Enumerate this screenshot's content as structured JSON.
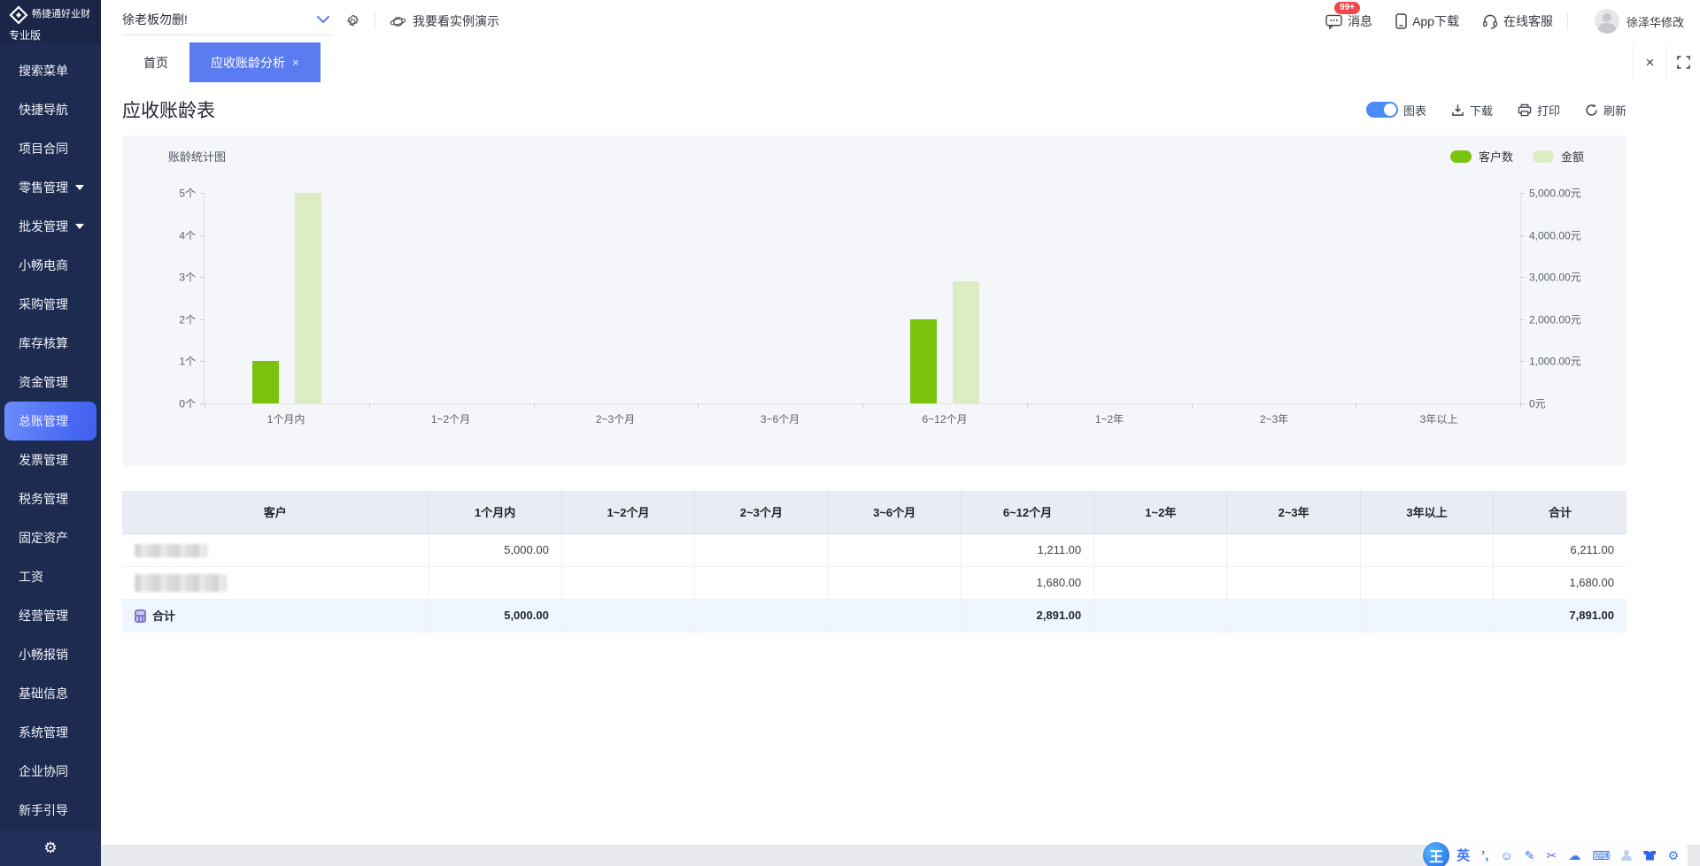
{
  "app": {
    "brand_line1": "畅捷通好业财",
    "brand_line2": "专业版",
    "account_name": "徐老板勿删!",
    "demo_link": "我要看实例演示",
    "message_label": "消息",
    "message_badge": "99+",
    "app_download_label": "App下载",
    "support_label": "在线客服",
    "user_name": "徐泽华修改"
  },
  "sidebar": {
    "footer_gear_glyph": "⚙",
    "items": [
      {
        "label": "搜索菜单"
      },
      {
        "label": "快捷导航"
      },
      {
        "label": "项目合同"
      },
      {
        "label": "零售管理",
        "arrow": true
      },
      {
        "label": "批发管理",
        "arrow": true
      },
      {
        "label": "小畅电商"
      },
      {
        "label": "采购管理"
      },
      {
        "label": "库存核算"
      },
      {
        "label": "资金管理"
      },
      {
        "label": "总账管理",
        "active": true
      },
      {
        "label": "发票管理"
      },
      {
        "label": "税务管理"
      },
      {
        "label": "固定资产"
      },
      {
        "label": "工资"
      },
      {
        "label": "经营管理"
      },
      {
        "label": "小畅报销"
      },
      {
        "label": "基础信息"
      },
      {
        "label": "系统管理"
      },
      {
        "label": "企业协同"
      },
      {
        "label": "新手引导"
      }
    ]
  },
  "tabs": [
    {
      "label": "首页",
      "active": false,
      "closable": false
    },
    {
      "label": "应收账龄分析",
      "active": true,
      "closable": true,
      "close_glyph": "×"
    }
  ],
  "window_controls": {
    "close_glyph": "×"
  },
  "page": {
    "title": "应收账龄表",
    "toolbar": {
      "chart_toggle_label": "图表",
      "toggle_on": true,
      "download_label": "下载",
      "print_label": "打印",
      "refresh_label": "刷新"
    }
  },
  "chart_data": {
    "type": "bar",
    "title": "账龄统计图",
    "categories": [
      "1个月内",
      "1~2个月",
      "2~3个月",
      "3~6个月",
      "6~12个月",
      "1~2年",
      "2~3年",
      "3年以上"
    ],
    "series": [
      {
        "name": "客户数",
        "color": "#7bc30e",
        "axis": "left",
        "values": [
          1,
          0,
          0,
          0,
          2,
          0,
          0,
          0
        ]
      },
      {
        "name": "金额",
        "color": "#dcedc3",
        "axis": "right",
        "values": [
          5000,
          0,
          0,
          0,
          2891,
          0,
          0,
          0
        ]
      }
    ],
    "left_axis": {
      "max": 5,
      "ticks": [
        "5个",
        "4个",
        "3个",
        "2个",
        "1个",
        "0个"
      ]
    },
    "right_axis": {
      "max": 5000,
      "ticks": [
        "5,000.00元",
        "4,000.00元",
        "3,000.00元",
        "2,000.00元",
        "1,000.00元",
        "0元"
      ]
    },
    "legend_position": "top-right",
    "grid": false
  },
  "table": {
    "headers": [
      "客户",
      "1个月内",
      "1~2个月",
      "2~3个月",
      "3~6个月",
      "6~12个月",
      "1~2年",
      "2~3年",
      "3年以上",
      "合计"
    ],
    "rows": [
      {
        "customer_redacted": true,
        "blur_w": 82,
        "blur_h": 15,
        "values": [
          "5,000.00",
          "",
          "",
          "",
          "1,211.00",
          "",
          "",
          "",
          "6,211.00"
        ]
      },
      {
        "customer_redacted": true,
        "blur_w": 104,
        "blur_h": 20,
        "values": [
          "",
          "",
          "",
          "",
          "1,680.00",
          "",
          "",
          "",
          "1,680.00"
        ]
      }
    ],
    "total_row": {
      "label": "合计",
      "values": [
        "5,000.00",
        "",
        "",
        "",
        "2,891.00",
        "",
        "",
        "",
        "7,891.00"
      ]
    }
  },
  "ime_bar": {
    "logo_glyph": "王",
    "icons": [
      {
        "name": "english-mode-icon",
        "glyph": "英",
        "kind": "txt"
      },
      {
        "name": "punctuation-icon",
        "glyph": "’,",
        "kind": "txt"
      },
      {
        "name": "emoji-icon",
        "glyph": "☺"
      },
      {
        "name": "handwriting-pencil-icon",
        "glyph": "✎"
      },
      {
        "name": "scissors-icon",
        "glyph": "✂"
      },
      {
        "name": "cloud-icon",
        "glyph": "☁"
      },
      {
        "name": "keyboard-icon",
        "glyph": "⌨"
      },
      {
        "name": "person-icon",
        "kind": "person"
      },
      {
        "name": "skin-shirt-icon",
        "kind": "shirt"
      },
      {
        "name": "ime-settings-gear-icon",
        "glyph": "⚙"
      }
    ]
  },
  "colors": {
    "sidebar_bg": "#1e2b50",
    "active_menu": "#4a6af3",
    "tab_active": "#5b7cf0",
    "toggle_on": "#4c8bf7",
    "series_customers": "#7bc30e",
    "series_amount": "#dcedc3",
    "table_header_bg": "#e9ecf3",
    "total_row_bg": "#f0f6fd",
    "badge_red": "#f0474a"
  }
}
